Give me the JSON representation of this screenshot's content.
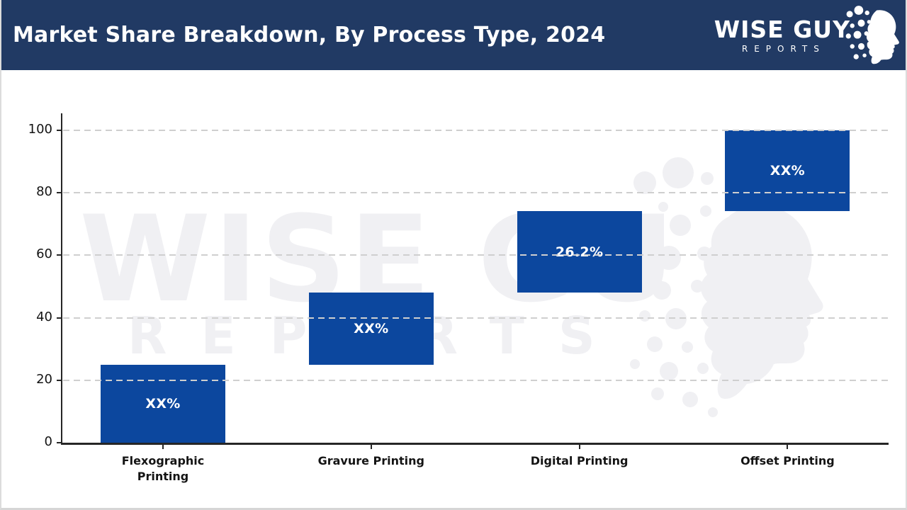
{
  "header": {
    "title": "Market Share Breakdown, By Process Type, 2024",
    "logo": {
      "brand": "WISE GUY",
      "sub": "REPORTS"
    }
  },
  "watermark": {
    "text_main": "WISE GU",
    "text_sub": "REPORTS"
  },
  "chart_data": {
    "type": "bar",
    "subtype": "waterfall-floating-bars",
    "title": "Market Share Breakdown, By Process Type, 2024",
    "categories": [
      "Flexographic\nPrinting",
      "Gravure Printing",
      "Digital Printing",
      "Offset Printing"
    ],
    "segments": [
      {
        "category": "Flexographic Printing",
        "base": 0,
        "top": 25,
        "size": 25,
        "label": "XX%"
      },
      {
        "category": "Gravure Printing",
        "base": 25,
        "top": 48,
        "size": 23,
        "label": "XX%"
      },
      {
        "category": "Digital Printing",
        "base": 48,
        "top": 74.2,
        "size": 26.2,
        "label": "26.2%"
      },
      {
        "category": "Offset Printing",
        "base": 74.2,
        "top": 100,
        "size": 25.8,
        "label": "XX%"
      }
    ],
    "yticks": [
      0,
      20,
      40,
      60,
      80,
      100
    ],
    "ylim": [
      0,
      100
    ],
    "xlabel": "",
    "ylabel": "",
    "grid": "horizontal-dashed, drawn above bars",
    "legend": "none",
    "bar_color": "#0c479e",
    "bar_label_color": "#ffffff"
  },
  "colors": {
    "header_bg": "#213a64",
    "bar": "#0c479e",
    "grid": "#cfcfcf",
    "axis": "#262626",
    "watermark": "#f0f0f3",
    "page_border": "#dcdcdc",
    "title_text": "#ffffff"
  }
}
